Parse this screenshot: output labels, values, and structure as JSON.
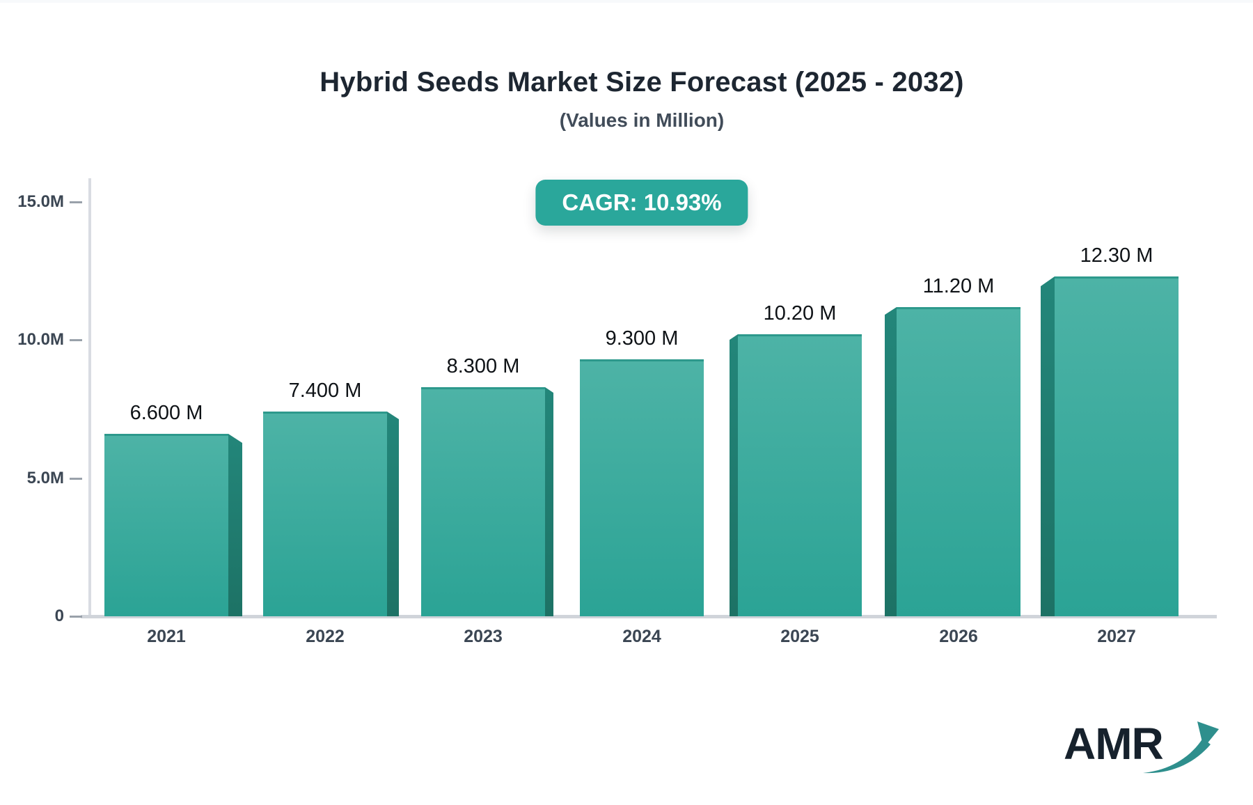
{
  "title": "Hybrid Seeds Market Size Forecast (2025 - 2032)",
  "subtitle": "(Values in Million)",
  "badge": {
    "label": "CAGR: 10.93%"
  },
  "logo": {
    "text": "AMR",
    "arrow_icon": "trend-arrow"
  },
  "colors": {
    "accent": "#2aa79b",
    "bar_top": "#4db3a6",
    "bar_bottom": "#2ba395",
    "bar_edge": "#2d998c",
    "bar_side": "#1f7d70",
    "axis_text": "#3b4653",
    "value_text": "#0e1216",
    "title_color": "#1d2631",
    "subtitle_color": "#414c59",
    "logo_arrow": "#2e8f8d"
  },
  "chart_data": {
    "type": "bar",
    "title": "Hybrid Seeds Market Size Forecast (2025 - 2032)",
    "subtitle": "(Values in Million)",
    "cagr_percent": 10.93,
    "unit": "Million",
    "categories": [
      "2021",
      "2022",
      "2023",
      "2024",
      "2025",
      "2026",
      "2027"
    ],
    "values": [
      6.6,
      7.4,
      8.3,
      9.3,
      10.2,
      11.2,
      12.3
    ],
    "value_labels": [
      "6.600 M",
      "7.400 M",
      "8.300 M",
      "9.300 M",
      "10.20 M",
      "11.20 M",
      "12.30 M"
    ],
    "ylim": [
      0,
      15
    ],
    "yticks": [
      {
        "value": 15,
        "label": "15.0M"
      },
      {
        "value": 10,
        "label": "10.0M"
      },
      {
        "value": 5,
        "label": "5.0M"
      },
      {
        "value": 0,
        "label": "0"
      }
    ],
    "grid": false,
    "legend": "none",
    "bar_style": "pseudo-3d, side faces angled away from chart center"
  }
}
